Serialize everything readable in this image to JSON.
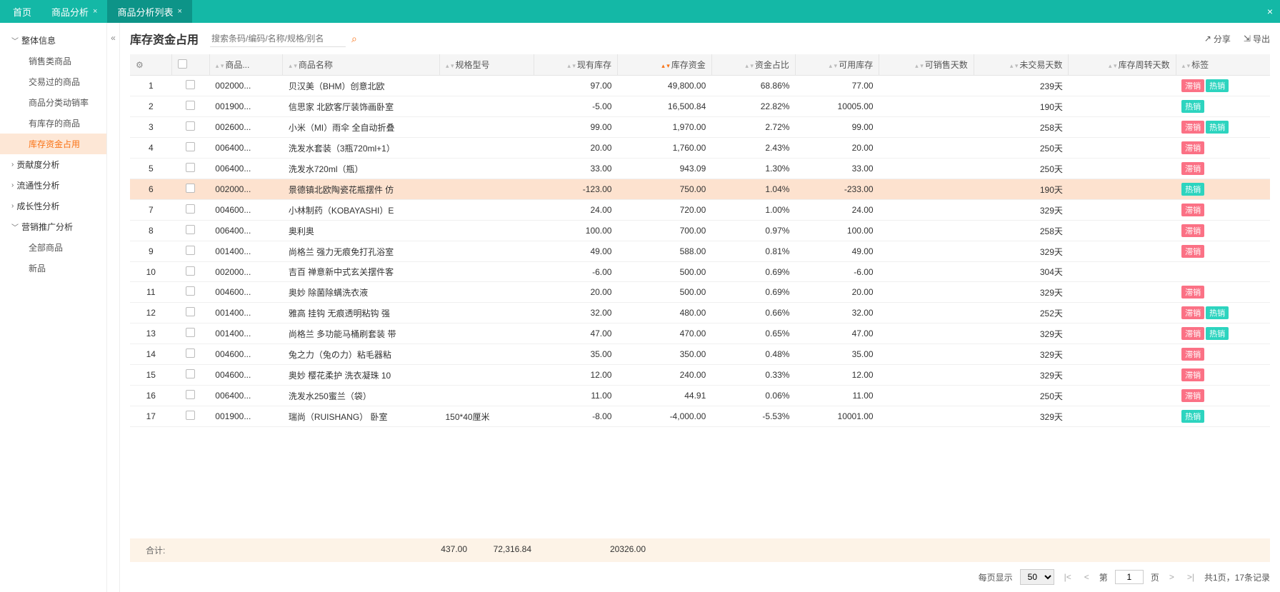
{
  "tabs": [
    {
      "label": "首页",
      "closable": false,
      "active": false
    },
    {
      "label": "商品分析",
      "closable": true,
      "active": false
    },
    {
      "label": "商品分析列表",
      "closable": true,
      "active": true
    }
  ],
  "sidebar": {
    "groups": [
      {
        "label": "整体信息",
        "open": true,
        "items": [
          {
            "label": "销售类商品"
          },
          {
            "label": "交易过的商品"
          },
          {
            "label": "商品分类动销率"
          },
          {
            "label": "有库存的商品"
          },
          {
            "label": "库存资金占用",
            "active": true
          }
        ]
      },
      {
        "label": "贡献度分析",
        "open": false,
        "items": []
      },
      {
        "label": "流通性分析",
        "open": false,
        "items": []
      },
      {
        "label": "成长性分析",
        "open": false,
        "items": []
      },
      {
        "label": "营销推广分析",
        "open": true,
        "items": [
          {
            "label": "全部商品"
          },
          {
            "label": "新品"
          }
        ]
      }
    ]
  },
  "page": {
    "title": "库存资金占用",
    "searchPlaceholder": "搜索条码/编码/名称/规格/别名",
    "share": "分享",
    "export": "导出"
  },
  "columns": [
    {
      "key": "gear",
      "label": "",
      "type": "gear",
      "w": 40
    },
    {
      "key": "chk",
      "label": "",
      "type": "chk",
      "w": 36
    },
    {
      "key": "code",
      "label": "商品...",
      "sort": true,
      "w": 70
    },
    {
      "key": "name",
      "label": "商品名称",
      "sort": true,
      "w": 150
    },
    {
      "key": "spec",
      "label": "规格型号",
      "sort": true,
      "w": 90
    },
    {
      "key": "stock",
      "label": "现有库存",
      "sort": true,
      "num": true,
      "w": 80
    },
    {
      "key": "amount",
      "label": "库存资金",
      "sort": true,
      "num": true,
      "w": 90,
      "sorted": true
    },
    {
      "key": "ratio",
      "label": "资金占比",
      "sort": true,
      "num": true,
      "w": 80
    },
    {
      "key": "avail",
      "label": "可用库存",
      "sort": true,
      "num": true,
      "w": 80
    },
    {
      "key": "saleDays",
      "label": "可销售天数",
      "sort": true,
      "num": true,
      "w": 90
    },
    {
      "key": "noTrade",
      "label": "未交易天数",
      "sort": true,
      "num": true,
      "w": 90
    },
    {
      "key": "turnover",
      "label": "库存周转天数",
      "sort": true,
      "num": true,
      "w": 100
    },
    {
      "key": "tags",
      "label": "标签",
      "sort": true,
      "w": 90
    }
  ],
  "rows": [
    {
      "idx": 1,
      "code": "002000...",
      "name": "贝汉美（BHM）创意北欧",
      "spec": "",
      "stock": "97.00",
      "amount": "49,800.00",
      "ratio": "68.86%",
      "avail": "77.00",
      "saleDays": "",
      "noTrade": "239天",
      "turnover": "",
      "tags": [
        "slow",
        "hot"
      ]
    },
    {
      "idx": 2,
      "code": "001900...",
      "name": "信思家 北欧客厅装饰画卧室",
      "spec": "",
      "stock": "-5.00",
      "amount": "16,500.84",
      "ratio": "22.82%",
      "avail": "10005.00",
      "saleDays": "",
      "noTrade": "190天",
      "turnover": "",
      "tags": [
        "hot"
      ]
    },
    {
      "idx": 3,
      "code": "002600...",
      "name": "小米（MI）雨伞 全自动折叠",
      "spec": "",
      "stock": "99.00",
      "amount": "1,970.00",
      "ratio": "2.72%",
      "avail": "99.00",
      "saleDays": "",
      "noTrade": "258天",
      "turnover": "",
      "tags": [
        "slow",
        "hot"
      ]
    },
    {
      "idx": 4,
      "code": "006400...",
      "name": "洗发水套装（3瓶720ml+1）",
      "spec": "",
      "stock": "20.00",
      "amount": "1,760.00",
      "ratio": "2.43%",
      "avail": "20.00",
      "saleDays": "",
      "noTrade": "250天",
      "turnover": "",
      "tags": [
        "slow"
      ]
    },
    {
      "idx": 5,
      "code": "006400...",
      "name": "洗发水720ml（瓶）",
      "spec": "",
      "stock": "33.00",
      "amount": "943.09",
      "ratio": "1.30%",
      "avail": "33.00",
      "saleDays": "",
      "noTrade": "250天",
      "turnover": "",
      "tags": [
        "slow"
      ]
    },
    {
      "idx": 6,
      "code": "002000...",
      "name": "景德镇北欧陶瓷花瓶摆件 仿",
      "spec": "",
      "stock": "-123.00",
      "amount": "750.00",
      "ratio": "1.04%",
      "avail": "-233.00",
      "saleDays": "",
      "noTrade": "190天",
      "turnover": "",
      "tags": [
        "hot"
      ],
      "hl": true
    },
    {
      "idx": 7,
      "code": "004600...",
      "name": "小林制药（KOBAYASHI）E",
      "spec": "",
      "stock": "24.00",
      "amount": "720.00",
      "ratio": "1.00%",
      "avail": "24.00",
      "saleDays": "",
      "noTrade": "329天",
      "turnover": "",
      "tags": [
        "slow"
      ]
    },
    {
      "idx": 8,
      "code": "006400...",
      "name": "奥利奥",
      "spec": "",
      "stock": "100.00",
      "amount": "700.00",
      "ratio": "0.97%",
      "avail": "100.00",
      "saleDays": "",
      "noTrade": "258天",
      "turnover": "",
      "tags": [
        "slow"
      ]
    },
    {
      "idx": 9,
      "code": "001400...",
      "name": "尚格兰 强力无痕免打孔浴室",
      "spec": "",
      "stock": "49.00",
      "amount": "588.00",
      "ratio": "0.81%",
      "avail": "49.00",
      "saleDays": "",
      "noTrade": "329天",
      "turnover": "",
      "tags": [
        "slow"
      ]
    },
    {
      "idx": 10,
      "code": "002000...",
      "name": "吉百 禅意新中式玄关摆件客",
      "spec": "",
      "stock": "-6.00",
      "amount": "500.00",
      "ratio": "0.69%",
      "avail": "-6.00",
      "saleDays": "",
      "noTrade": "304天",
      "turnover": "",
      "tags": []
    },
    {
      "idx": 11,
      "code": "004600...",
      "name": "奥妙 除菌除螨洗衣液",
      "spec": "",
      "stock": "20.00",
      "amount": "500.00",
      "ratio": "0.69%",
      "avail": "20.00",
      "saleDays": "",
      "noTrade": "329天",
      "turnover": "",
      "tags": [
        "slow"
      ]
    },
    {
      "idx": 12,
      "code": "001400...",
      "name": "雅高 挂钩 无痕透明粘钩 强",
      "spec": "",
      "stock": "32.00",
      "amount": "480.00",
      "ratio": "0.66%",
      "avail": "32.00",
      "saleDays": "",
      "noTrade": "252天",
      "turnover": "",
      "tags": [
        "slow",
        "hot"
      ]
    },
    {
      "idx": 13,
      "code": "001400...",
      "name": "尚格兰 多功能马桶刷套装 带",
      "spec": "",
      "stock": "47.00",
      "amount": "470.00",
      "ratio": "0.65%",
      "avail": "47.00",
      "saleDays": "",
      "noTrade": "329天",
      "turnover": "",
      "tags": [
        "slow",
        "hot"
      ]
    },
    {
      "idx": 14,
      "code": "004600...",
      "name": "兔之力（兔の力）粘毛器粘",
      "spec": "",
      "stock": "35.00",
      "amount": "350.00",
      "ratio": "0.48%",
      "avail": "35.00",
      "saleDays": "",
      "noTrade": "329天",
      "turnover": "",
      "tags": [
        "slow"
      ]
    },
    {
      "idx": 15,
      "code": "004600...",
      "name": "奥妙 樱花柔护 洗衣凝珠 10",
      "spec": "",
      "stock": "12.00",
      "amount": "240.00",
      "ratio": "0.33%",
      "avail": "12.00",
      "saleDays": "",
      "noTrade": "329天",
      "turnover": "",
      "tags": [
        "slow"
      ]
    },
    {
      "idx": 16,
      "code": "006400...",
      "name": "洗发水250蜜兰（袋）",
      "spec": "",
      "stock": "11.00",
      "amount": "44.91",
      "ratio": "0.06%",
      "avail": "11.00",
      "saleDays": "",
      "noTrade": "250天",
      "turnover": "",
      "tags": [
        "slow"
      ]
    },
    {
      "idx": 17,
      "code": "001900...",
      "name": "瑞尚（RUISHANG） 卧室",
      "spec": "150*40厘米",
      "stock": "-8.00",
      "amount": "-4,000.00",
      "ratio": "-5.53%",
      "avail": "10001.00",
      "saleDays": "",
      "noTrade": "329天",
      "turnover": "",
      "tags": [
        "hot"
      ]
    }
  ],
  "tagLabels": {
    "slow": "滞销",
    "hot": "热销"
  },
  "totals": {
    "label": "合计:",
    "stock": "437.00",
    "amount": "72,316.84",
    "avail": "20326.00"
  },
  "pager": {
    "perPageLabel": "每页显示",
    "perPage": "50",
    "pageLabelPrefix": "第",
    "pageValue": "1",
    "pageLabelSuffix": "页",
    "first": "|<",
    "prev": "<",
    "next": ">",
    "last": ">|",
    "summary": "共1页，17条记录"
  }
}
